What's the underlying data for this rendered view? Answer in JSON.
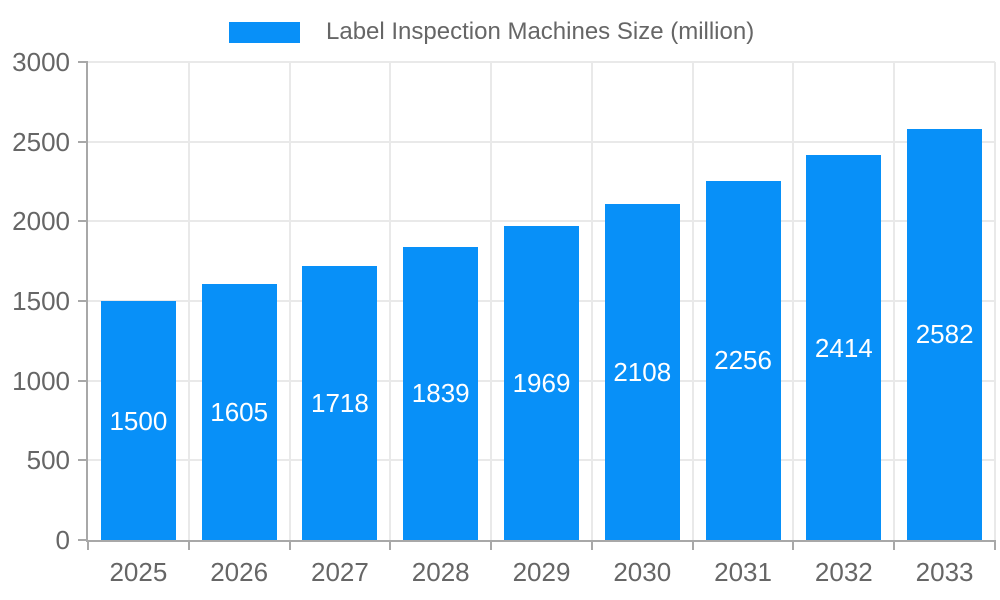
{
  "legend": {
    "label": "Label Inspection Machines Size (million)"
  },
  "chart_data": {
    "type": "bar",
    "title": "",
    "series_name": "Label Inspection Machines Size (million)",
    "categories": [
      "2025",
      "2026",
      "2027",
      "2028",
      "2029",
      "2030",
      "2031",
      "2032",
      "2033"
    ],
    "values": [
      1500,
      1605,
      1718,
      1839,
      1969,
      2108,
      2256,
      2414,
      2582
    ],
    "xlabel": "",
    "ylabel": "",
    "ylim": [
      0,
      3000
    ],
    "yticks": [
      0,
      500,
      1000,
      1500,
      2000,
      2500,
      3000
    ],
    "grid": true,
    "legend_position": "top",
    "value_labels": "inside-center"
  },
  "colors": {
    "bar": "#0890f8",
    "gridline": "#e9e9e9",
    "axis_line": "#a8a8a8",
    "tick_label": "#666666",
    "legend_text": "#666666",
    "value_label": "#ffffff",
    "background": "#ffffff"
  }
}
